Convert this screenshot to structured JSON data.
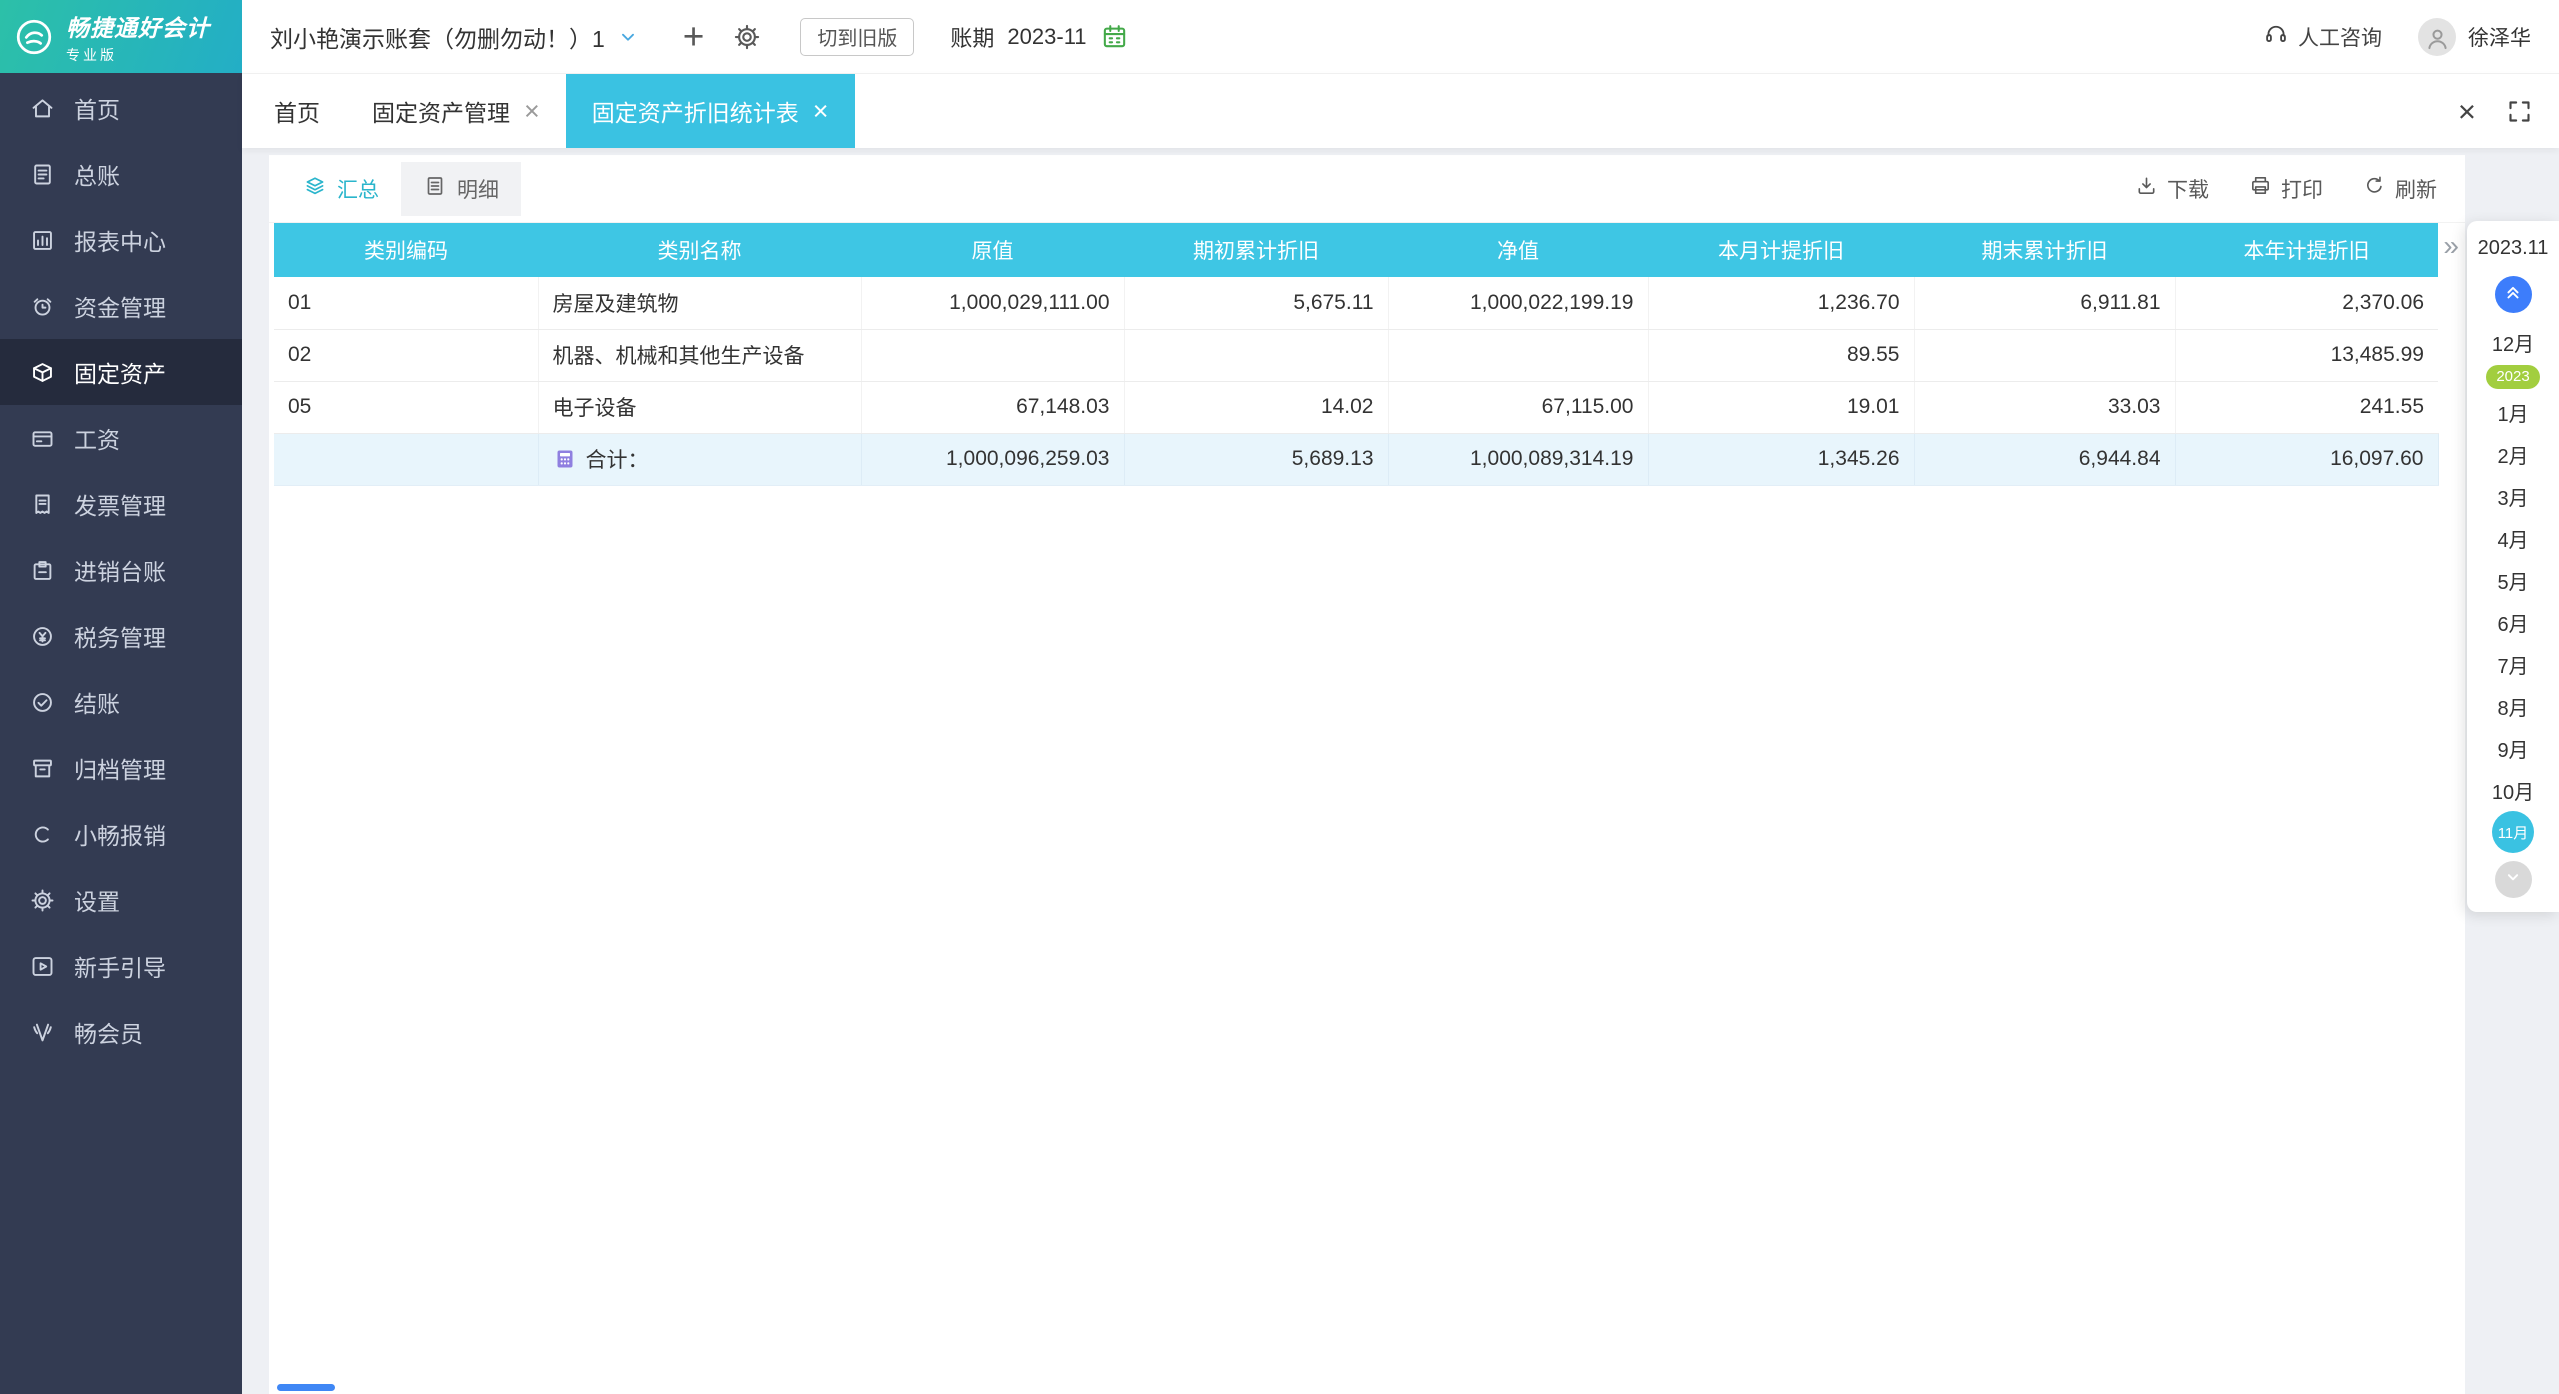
{
  "colors": {
    "accent": "#3ac2e2",
    "table_header_bg": "#3ec6e4",
    "sidebar_bg": "#333b52",
    "sidebar_active_bg": "#252b3d",
    "logo_teal_1": "#2cc0a8",
    "logo_teal_2": "#23aec6",
    "total_row_bg": "#e8f5fc",
    "year_badge_green": "#a2ce3f",
    "scroll_up_blue": "#3d7dfb",
    "scroll_down_gray": "#d9d9d9",
    "calendar_green": "#43a949",
    "content_bg": "#eef0f4",
    "scroll_thumb_blue": "#3f87f5"
  },
  "logo": {
    "title": "畅捷通好会计",
    "subtitle": "专业版"
  },
  "sidebar": {
    "items": [
      {
        "label": "首页",
        "icon": "home",
        "active": false
      },
      {
        "label": "总账",
        "icon": "ledger",
        "active": false
      },
      {
        "label": "报表中心",
        "icon": "report-center",
        "active": false
      },
      {
        "label": "资金管理",
        "icon": "funds",
        "active": false
      },
      {
        "label": "固定资产",
        "icon": "fixed-assets",
        "active": true
      },
      {
        "label": "工资",
        "icon": "salary",
        "active": false
      },
      {
        "label": "发票管理",
        "icon": "invoice",
        "active": false
      },
      {
        "label": "进销台账",
        "icon": "inventory",
        "active": false
      },
      {
        "label": "税务管理",
        "icon": "tax",
        "active": false
      },
      {
        "label": "结账",
        "icon": "closing",
        "active": false
      },
      {
        "label": "归档管理",
        "icon": "archive",
        "active": false
      },
      {
        "label": "小畅报销",
        "icon": "reimburse",
        "active": false
      },
      {
        "label": "设置",
        "icon": "settings",
        "active": false
      },
      {
        "label": "新手引导",
        "icon": "guide",
        "active": false
      },
      {
        "label": "畅会员",
        "icon": "member",
        "active": false
      }
    ]
  },
  "topbar": {
    "account_name": "刘小艳演示账套（勿删勿动！）1",
    "add_glyph": "+",
    "switch_old_label": "切到旧版",
    "period_label": "账期",
    "period_value": "2023-11",
    "support_label": "人工咨询",
    "user_name": "徐泽华"
  },
  "tab_strip": {
    "close_all_glyph": "×",
    "close_glyph": "×",
    "tabs": [
      {
        "label": "首页",
        "active": false,
        "closable": false
      },
      {
        "label": "固定资产管理",
        "active": false,
        "closable": true
      },
      {
        "label": "固定资产折旧统计表",
        "active": true,
        "closable": true
      }
    ]
  },
  "toolbar": {
    "view_tabs": [
      {
        "label": "汇总",
        "icon": "layers",
        "active": true
      },
      {
        "label": "明细",
        "icon": "detail",
        "active": false
      }
    ],
    "actions": [
      {
        "label": "下载",
        "icon": "download"
      },
      {
        "label": "打印",
        "icon": "print"
      },
      {
        "label": "刷新",
        "icon": "refresh"
      }
    ]
  },
  "table": {
    "headers": [
      "类别编码",
      "类别名称",
      "原值",
      "期初累计折旧",
      "净值",
      "本月计提折旧",
      "期末累计折旧",
      "本年计提折旧"
    ],
    "rows": [
      [
        "01",
        "房屋及建筑物",
        "1,000,029,111.00",
        "5,675.11",
        "1,000,022,199.19",
        "1,236.70",
        "6,911.81",
        "2,370.06"
      ],
      [
        "02",
        "机器、机械和其他生产设备",
        "",
        "",
        "",
        "89.55",
        "",
        "13,485.99"
      ],
      [
        "05",
        "电子设备",
        "67,148.03",
        "14.02",
        "67,115.00",
        "19.01",
        "33.03",
        "241.55"
      ]
    ],
    "total": {
      "label": "合计：",
      "values": [
        "1,000,096,259.03",
        "5,689.13",
        "1,000,089,314.19",
        "1,345.26",
        "6,944.84",
        "16,097.60"
      ]
    }
  },
  "date_panel": {
    "collapse_glyph": "»",
    "current_period": "2023.11",
    "items": [
      {
        "type": "month",
        "label": "12月",
        "selected": false
      },
      {
        "type": "year-badge",
        "label": "2023"
      },
      {
        "type": "month",
        "label": "1月",
        "selected": false
      },
      {
        "type": "month",
        "label": "2月",
        "selected": false
      },
      {
        "type": "month",
        "label": "3月",
        "selected": false
      },
      {
        "type": "month",
        "label": "4月",
        "selected": false
      },
      {
        "type": "month",
        "label": "5月",
        "selected": false
      },
      {
        "type": "month",
        "label": "6月",
        "selected": false
      },
      {
        "type": "month",
        "label": "7月",
        "selected": false
      },
      {
        "type": "month",
        "label": "8月",
        "selected": false
      },
      {
        "type": "month",
        "label": "9月",
        "selected": false
      },
      {
        "type": "month",
        "label": "10月",
        "selected": false
      },
      {
        "type": "month",
        "label": "11月",
        "selected": true
      }
    ]
  }
}
